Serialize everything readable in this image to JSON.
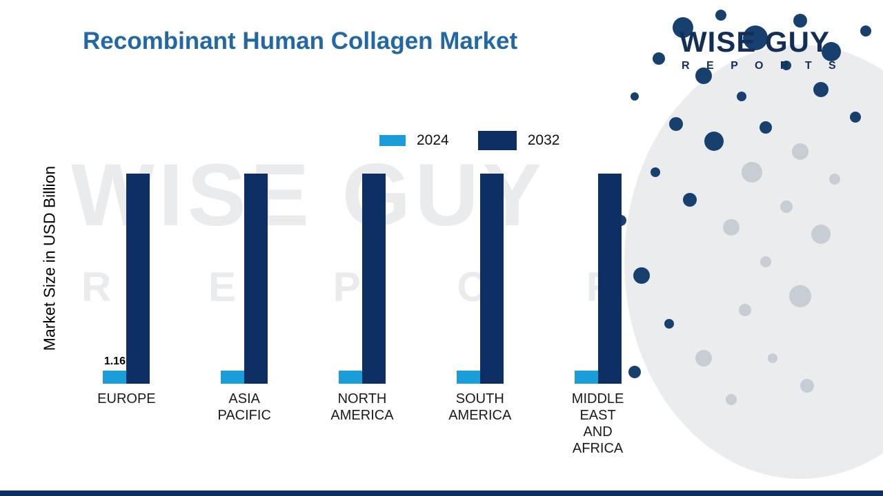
{
  "title": "Recombinant Human Collagen Market",
  "logo": {
    "line1": "WISE GUY",
    "line2": "R E P O R T S"
  },
  "watermark": {
    "line1": "WISE GUY",
    "line2": "R E P O R T S"
  },
  "colors": {
    "series_2024_blue": "#1b9dd9",
    "series_2032_navy": "#0d2f63",
    "title_blue": "#2368a4",
    "logo_navy": "#142f57",
    "watermark_gray": "#e9ebed"
  },
  "chart_data": {
    "type": "bar",
    "title": "Recombinant Human Collagen Market",
    "ylabel": "Market Size in USD Billion",
    "xlabel": "",
    "categories": [
      "EUROPE",
      "ASIA PACIFIC",
      "NORTH AMERICA",
      "SOUTH AMERICA",
      "MIDDLE EAST AND AFRICA"
    ],
    "categories_lines": [
      [
        "EUROPE"
      ],
      [
        "ASIA",
        "PACIFIC"
      ],
      [
        "NORTH",
        "AMERICA"
      ],
      [
        "SOUTH",
        "AMERICA"
      ],
      [
        "MIDDLE",
        "EAST",
        "AND",
        "AFRICA"
      ]
    ],
    "series": [
      {
        "name": "2024",
        "color": "#1b9dd9",
        "values": [
          1.16,
          1.16,
          1.16,
          1.16,
          1.16
        ],
        "value_labels": [
          "1.16",
          "",
          "",
          "",
          ""
        ]
      },
      {
        "name": "2032",
        "color": "#0d2f63",
        "values": [
          18.6,
          18.6,
          18.6,
          18.6,
          18.6
        ],
        "value_labels": [
          "",
          "",
          "",
          "",
          ""
        ]
      }
    ],
    "ylim": [
      0,
      20
    ],
    "grid": false,
    "legend_position": "top-center"
  }
}
